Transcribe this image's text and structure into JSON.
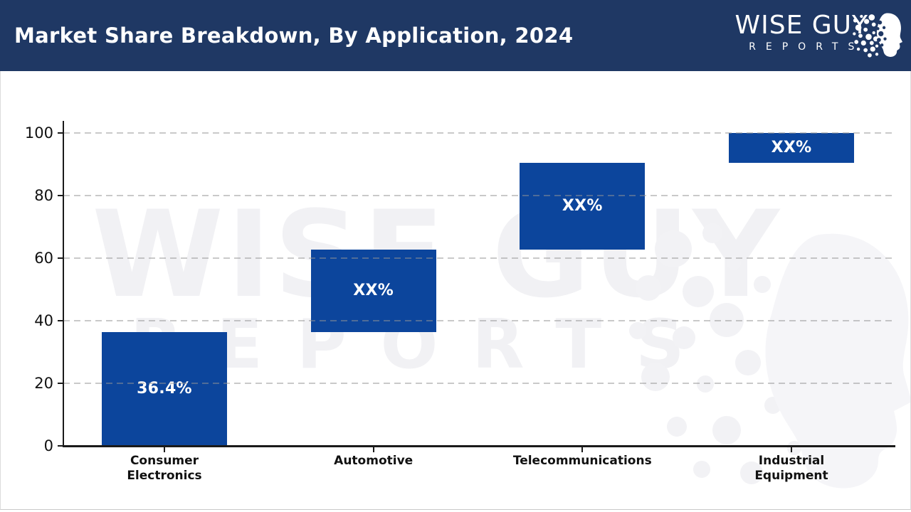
{
  "header": {
    "title": "Market Share Breakdown, By Application, 2024",
    "logo": {
      "name": "WISE GUY",
      "tagline": "REPORTS"
    },
    "bg_color": "#1F3864"
  },
  "watermark": {
    "line1": "WISE GUY",
    "line2": "REPORTS"
  },
  "chart_data": {
    "type": "bar",
    "subtype": "floating-waterfall-segments",
    "title": "Market Share Breakdown, By Application, 2024",
    "categories": [
      "Consumer\nElectronics",
      "Automotive",
      "Telecommunications",
      "Industrial\nEquipment"
    ],
    "bars": [
      {
        "category": "Consumer Electronics",
        "start": 0,
        "end": 36.4,
        "label": "36.4%"
      },
      {
        "category": "Automotive",
        "start": 36.4,
        "end": 62.7,
        "label": "XX%"
      },
      {
        "category": "Telecommunications",
        "start": 62.7,
        "end": 90.5,
        "label": "XX%"
      },
      {
        "category": "Industrial Equipment",
        "start": 90.5,
        "end": 100,
        "label": "XX%"
      }
    ],
    "yticks": [
      0,
      20,
      40,
      60,
      80,
      100
    ],
    "ylim": [
      0,
      104
    ],
    "xlabel": "",
    "ylabel": "",
    "legend": "none",
    "grid": "horizontal dashed light-gray, drawn over bars",
    "bar_color": "#0C459C",
    "value_label_color": "#FFFFFF"
  }
}
